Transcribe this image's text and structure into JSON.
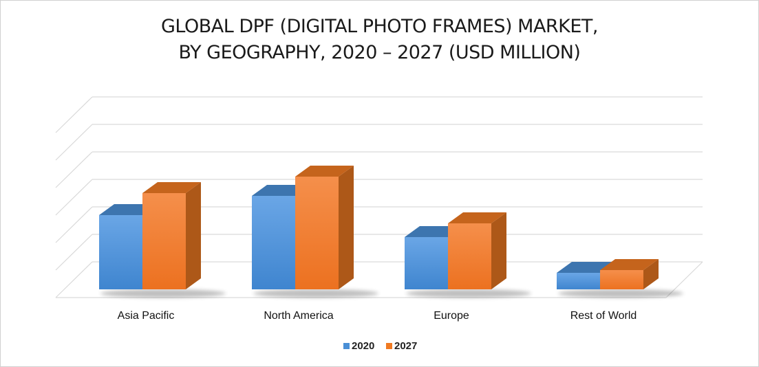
{
  "chart_data": {
    "type": "bar",
    "title_lines": [
      "GLOBAL DPF (DIGITAL PHOTO FRAMES) MARKET,",
      "BY GEOGRAPHY, 2020 – 2027 (USD MILLION)"
    ],
    "categories": [
      "Asia Pacific",
      "North America",
      "Europe",
      "Rest of World"
    ],
    "series": [
      {
        "name": "2020",
        "values": [
          2.7,
          3.4,
          1.9,
          0.6
        ],
        "color": "#4a8fd6"
      },
      {
        "name": "2027",
        "values": [
          3.5,
          4.1,
          2.4,
          0.7
        ],
        "color": "#f07a22"
      }
    ],
    "ylim": [
      0,
      6
    ],
    "grid": true,
    "show_y_tick_labels": false,
    "legend_position": "bottom",
    "style": "3d-clustered-column"
  }
}
